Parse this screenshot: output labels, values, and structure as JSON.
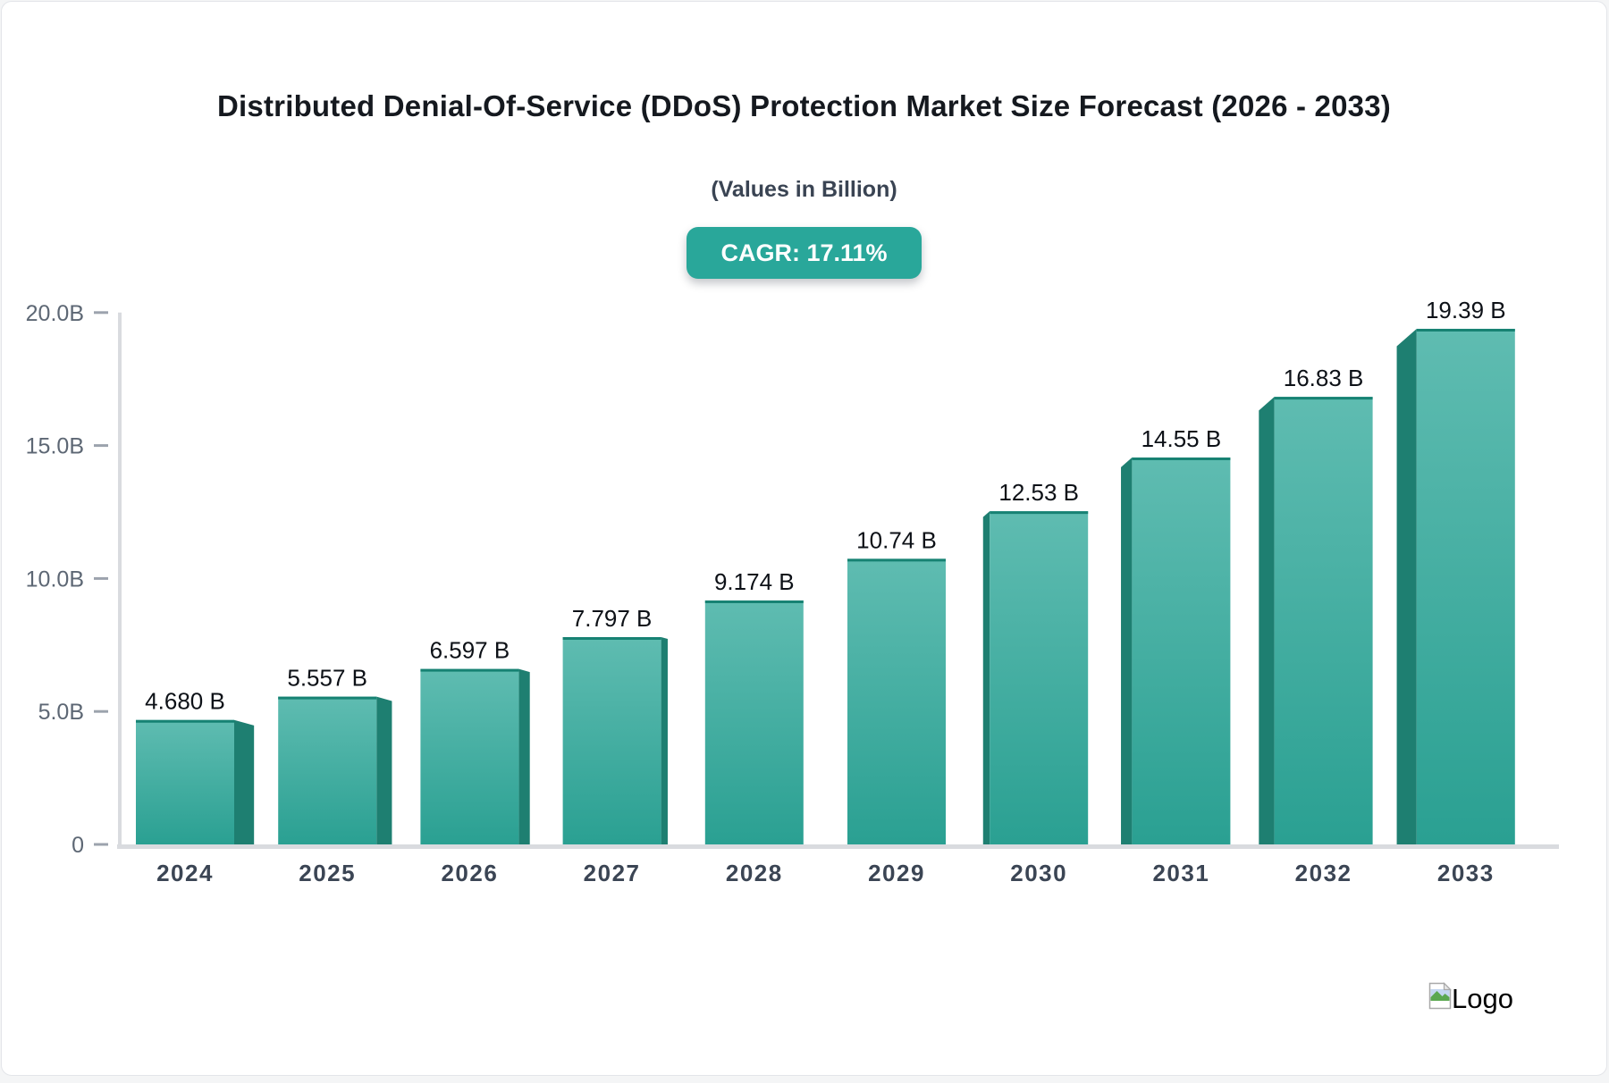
{
  "header": {
    "title": "Distributed Denial-Of-Service (DDoS) Protection Market Size Forecast (2026 - 2033)",
    "subtitle": "(Values in Billion)",
    "cagr_badge": "CAGR: 17.11%"
  },
  "logo": {
    "alt_text": "Logo",
    "icon": "broken-image-icon"
  },
  "chart_data": {
    "type": "bar",
    "title": "Distributed Denial-Of-Service (DDoS) Protection Market Size Forecast (2026 - 2033)",
    "subtitle": "(Values in Billion)",
    "cagr_label": "CAGR: 17.11%",
    "categories": [
      "2024",
      "2025",
      "2026",
      "2027",
      "2028",
      "2029",
      "2030",
      "2031",
      "2032",
      "2033"
    ],
    "values": [
      4.68,
      5.557,
      6.597,
      7.797,
      9.174,
      10.74,
      12.53,
      14.55,
      16.83,
      19.39
    ],
    "value_labels": [
      "4.680 B",
      "5.557 B",
      "6.597 B",
      "7.797 B",
      "9.174 B",
      "10.74 B",
      "12.53 B",
      "14.55 B",
      "16.83 B",
      "19.39 B"
    ],
    "unit": "B",
    "ylim": [
      0,
      20
    ],
    "yticks": [
      0,
      5,
      10,
      15,
      20
    ],
    "ytick_labels": [
      "0",
      "5.0B",
      "10.0B",
      "15.0B",
      "20.0B"
    ],
    "xlabel": "",
    "ylabel": "",
    "grid": "off",
    "legend": null,
    "style_3d": true,
    "colors": {
      "bar_front_top": "#5fbcb1",
      "bar_front_bottom": "#2aa092",
      "bar_side": "#1e7f71",
      "bar_top_stroke": "#178273",
      "axis_line": "#d9dbdf",
      "tick_mark": "#9ca3ad",
      "ytick_label": "#5d6774",
      "xtick_label": "#3b4554",
      "value_label": "#0d1117",
      "badge_bg": "#29a79a",
      "badge_text": "#ffffff"
    }
  }
}
